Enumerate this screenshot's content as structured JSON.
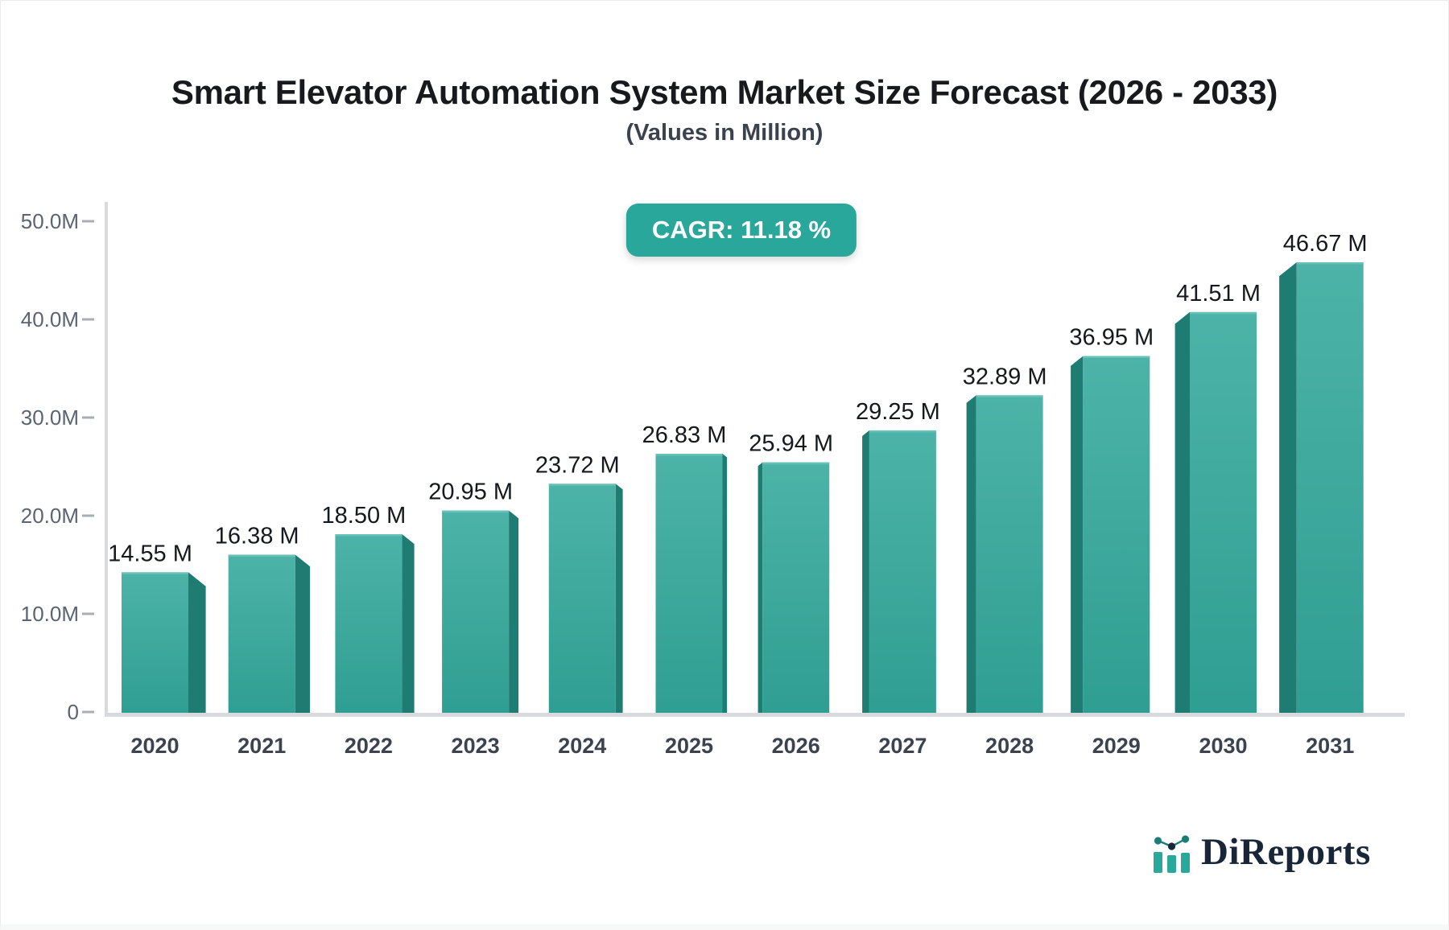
{
  "chart_data": {
    "type": "bar",
    "style": "3d-perspective",
    "title": "Smart Elevator Automation System Market Size Forecast (2026 - 2033)",
    "subtitle": "(Values in Million)",
    "cagr_label": "CAGR: 11.18 %",
    "cagr_percent": 11.18,
    "unit": "Million",
    "categories": [
      "2020",
      "2021",
      "2022",
      "2023",
      "2024",
      "2025",
      "2026",
      "2027",
      "2028",
      "2029",
      "2030",
      "2031"
    ],
    "values": [
      14.55,
      16.38,
      18.5,
      20.95,
      23.72,
      26.83,
      25.94,
      29.25,
      32.89,
      36.95,
      41.51,
      46.67
    ],
    "value_labels": [
      "14.55 M",
      "16.38 M",
      "18.50 M",
      "20.95 M",
      "23.72 M",
      "26.83 M",
      "25.94 M",
      "29.25 M",
      "32.89 M",
      "36.95 M",
      "41.51 M",
      "46.67 M"
    ],
    "y_axis": {
      "max": 50,
      "ticks": [
        {
          "label": "50.0M",
          "value": 50
        },
        {
          "label": "40.0M",
          "value": 40
        },
        {
          "label": "30.0M",
          "value": 30
        },
        {
          "label": "20.0M",
          "value": 20
        },
        {
          "label": "10.0M",
          "value": 10
        },
        {
          "label": "0",
          "value": 0
        }
      ]
    },
    "grid": false,
    "legend": false,
    "colors": {
      "accent_teal": "#2aa79b",
      "bar_front_top": "#4db3a8",
      "bar_front_bottom": "#2f9e92",
      "bar_top_highlight": "#68c1b6",
      "bar_side": "#1f7c72",
      "axis_line": "#d9dadd",
      "tick_mark": "#a9aeb6",
      "y_label": "#5a6472",
      "x_label": "#3a434f",
      "value_label": "#15181c"
    }
  },
  "branding": {
    "logo_text": "DiReports",
    "logo_icon": "mini-bar-line-chart-icon",
    "logo_navy": "#182638",
    "logo_teal": "#2aa89c",
    "logo_dot": "#1b7d73"
  }
}
